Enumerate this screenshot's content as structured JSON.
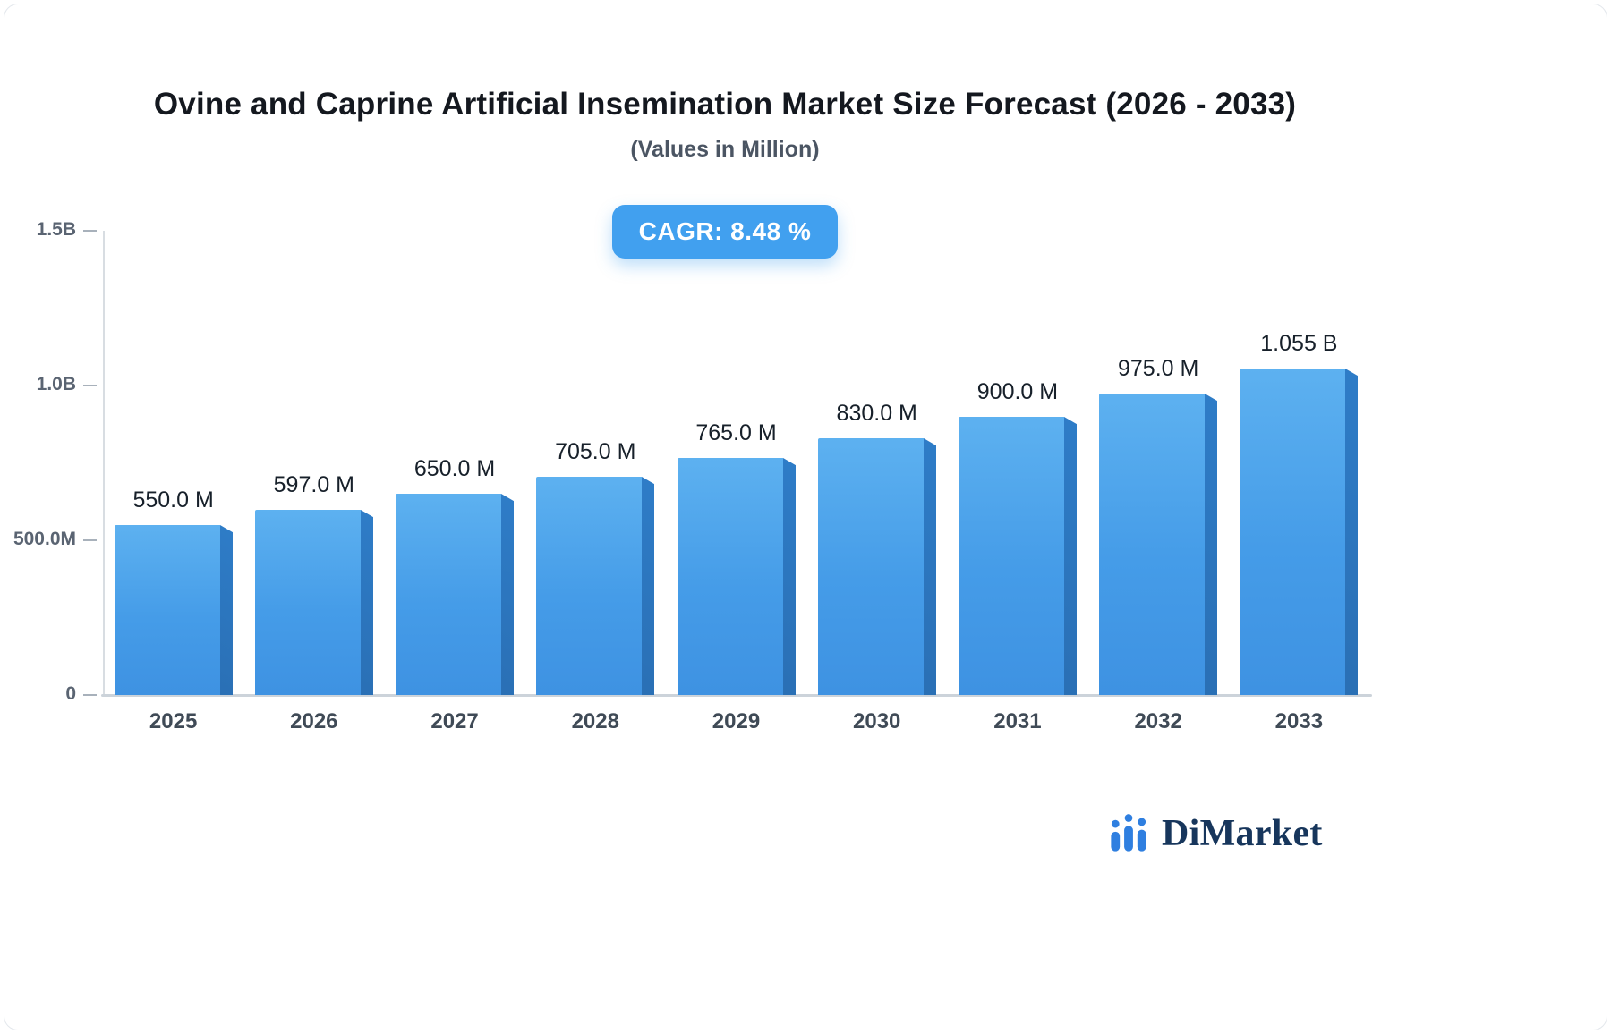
{
  "page": {
    "title": "Ovine and Caprine Artificial Insemination Market Size Forecast (2026 - 2033)",
    "subtitle": "(Values in Million)",
    "cagr_badge": "CAGR: 8.48 %",
    "brand": "DiMarket"
  },
  "colors": {
    "bar_front": "#459ce8",
    "bar_side": "#2b74bd",
    "badge_bg": "#41a0ef",
    "logo_blue": "#2f7fe0",
    "logo_navy": "#17365c"
  },
  "chart_data": {
    "type": "bar",
    "title": "Ovine and Caprine Artificial Insemination Market Size Forecast (2026 - 2033)",
    "subtitle": "(Values in Million)",
    "cagr": "8.48 %",
    "categories": [
      "2025",
      "2026",
      "2027",
      "2028",
      "2029",
      "2030",
      "2031",
      "2032",
      "2033"
    ],
    "values_million": [
      550,
      597,
      650,
      705,
      765,
      830,
      900,
      975,
      1055
    ],
    "value_labels": [
      "550.0 M",
      "597.0 M",
      "650.0 M",
      "705.0 M",
      "765.0 M",
      "830.0 M",
      "900.0 M",
      "975.0 M",
      "1.055 B"
    ],
    "y_tick_labels": [
      "1.5B",
      "1.0B",
      "500.0M",
      "0"
    ],
    "y_tick_values_million": [
      1500,
      1000,
      500,
      0
    ],
    "ylim_million": [
      0,
      1500
    ],
    "xlabel": "",
    "ylabel": "",
    "grid": false,
    "legend": false
  }
}
